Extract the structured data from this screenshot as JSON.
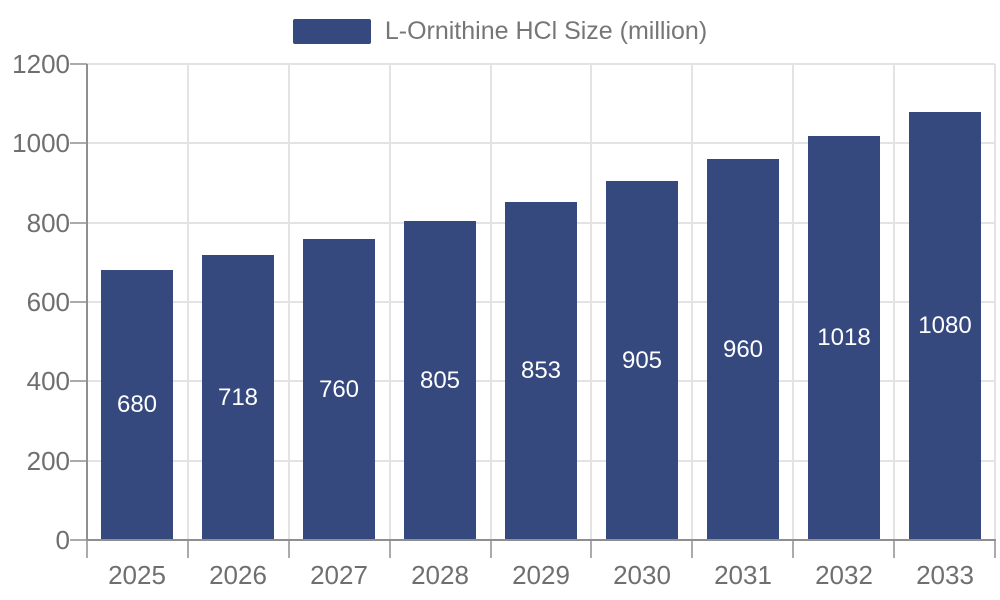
{
  "legend": {
    "label": "L-Ornithine HCl Size (million)"
  },
  "chart_data": {
    "type": "bar",
    "title": "L-Ornithine HCl Size (million)",
    "series": [
      {
        "name": "L-Ornithine HCl Size (million)",
        "values": [
          680,
          718,
          760,
          805,
          853,
          905,
          960,
          1018,
          1080
        ]
      }
    ],
    "categories": [
      "2025",
      "2026",
      "2027",
      "2028",
      "2029",
      "2030",
      "2031",
      "2032",
      "2033"
    ],
    "xlabel": "",
    "ylabel": "",
    "ylim": [
      0,
      1200
    ],
    "yticks": [
      0,
      200,
      400,
      600,
      800,
      1000,
      1200
    ],
    "grid": true,
    "legend_position": "top",
    "bar_value_labels": true
  },
  "colors": {
    "bar": "#36497E",
    "bar_value_text": "#FFFFFF",
    "gridline": "#E3E3E3",
    "axis_line": "#8F8F8F",
    "tick_mark": "#ABABAB",
    "axis_label_text": "#6F6F6F",
    "legend_text": "#767676",
    "background": "#FFFFFF"
  }
}
